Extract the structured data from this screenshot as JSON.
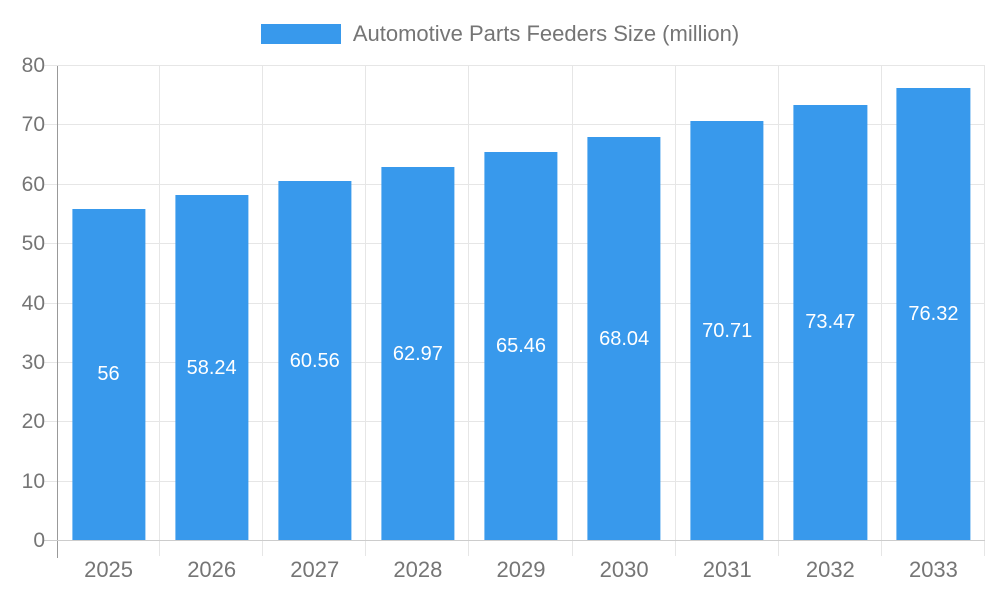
{
  "chart_data": {
    "type": "bar",
    "legend": "Automotive Parts Feeders Size (million)",
    "legend_position": "top-center",
    "categories": [
      "2025",
      "2026",
      "2027",
      "2028",
      "2029",
      "2030",
      "2031",
      "2032",
      "2033"
    ],
    "values": [
      56,
      58.24,
      60.56,
      62.97,
      65.46,
      68.04,
      70.71,
      73.47,
      76.32
    ],
    "title": "",
    "xlabel": "",
    "ylabel": "",
    "ylim": [
      0,
      80
    ],
    "ytick_step": 10,
    "yticks": [
      0,
      10,
      20,
      30,
      40,
      50,
      60,
      70,
      80
    ],
    "grid": true,
    "bar_label_position": "center",
    "colors": {
      "bar": "#3899EC",
      "grid": "#E6E6E6",
      "axis": "#999999",
      "baseline": "#CCCCCC",
      "text": "#757575",
      "bar_label": "#FFFFFF",
      "background": "#FFFFFF"
    }
  }
}
